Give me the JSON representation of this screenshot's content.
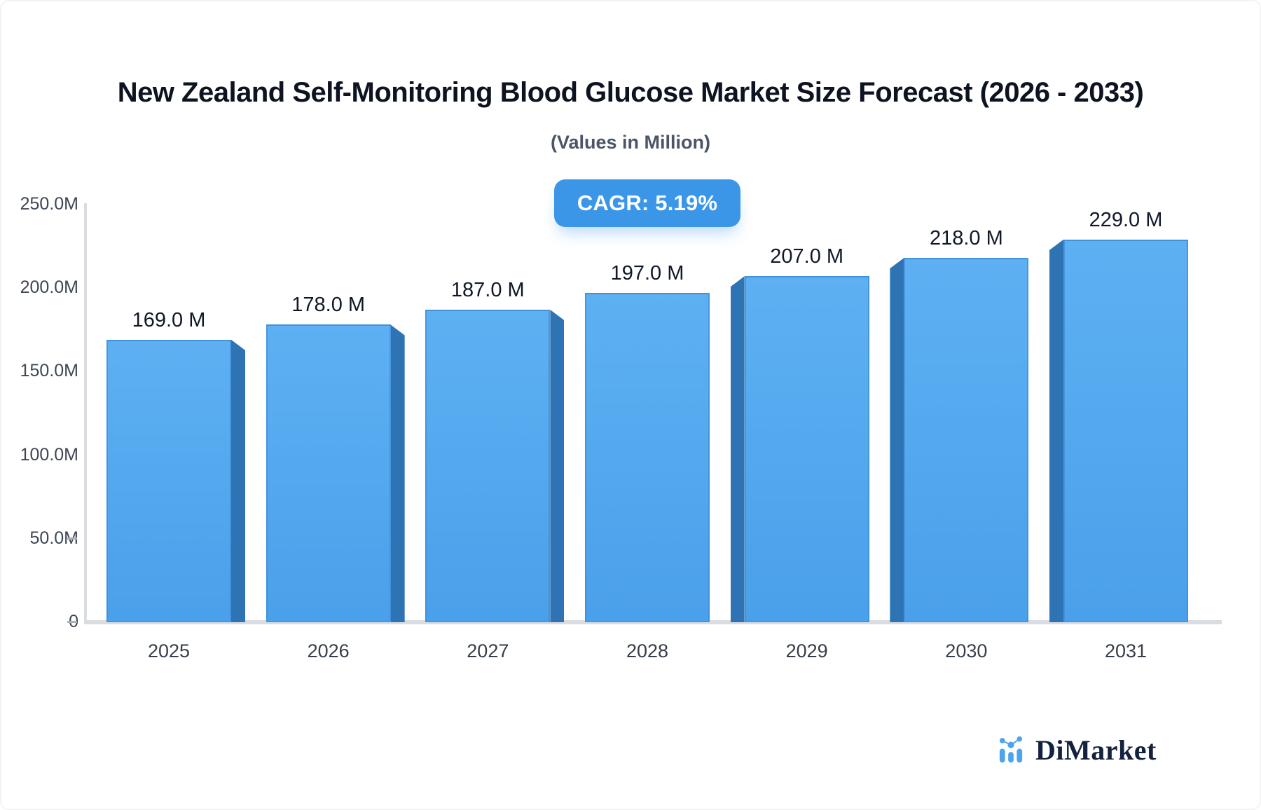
{
  "header": {
    "title": "New Zealand Self-Monitoring Blood Glucose Market Size Forecast (2026 - 2033)",
    "subtitle": "(Values in Million)"
  },
  "badge": {
    "label": "CAGR: 5.19%"
  },
  "chart_data": {
    "type": "bar",
    "title": "New Zealand Self-Monitoring Blood Glucose Market Size Forecast (2026 - 2033)",
    "subtitle": "(Values in Million)",
    "categories": [
      "2025",
      "2026",
      "2027",
      "2028",
      "2029",
      "2030",
      "2031"
    ],
    "values": [
      169,
      178,
      187,
      197,
      207,
      218,
      229
    ],
    "value_labels": [
      "169.0 M",
      "178.0 M",
      "187.0 M",
      "197.0 M",
      "207.0 M",
      "218.0 M",
      "229.0 M"
    ],
    "unit": "Million",
    "xlabel": "",
    "ylabel": "",
    "ylim": [
      0,
      250
    ],
    "y_ticks": [
      {
        "value": 250,
        "label": "250.0M",
        "tick": false
      },
      {
        "value": 200,
        "label": "200.0M",
        "tick": false
      },
      {
        "value": 150,
        "label": "150.0M",
        "tick": false
      },
      {
        "value": 100,
        "label": "100.0M",
        "tick": false
      },
      {
        "value": 50,
        "label": "50.0M",
        "tick": true
      },
      {
        "value": 0,
        "label": "0",
        "tick": true
      }
    ],
    "grid": false,
    "legend": false,
    "cagr": "5.19%",
    "style": "3d-extruded-bars"
  },
  "colors": {
    "bar_front": "#55a8ef",
    "bar_side": "#2e74b4",
    "badge_blue": "#3b96e8",
    "axis_gray": "#d9dce1",
    "title_text": "#0d1320",
    "subtitle_text": "#4a5565",
    "brand_navy": "#15223d",
    "brand_blue": "#4da3ee"
  },
  "branding": {
    "name": "DiMarket",
    "icon": "bar-chart-logo-icon"
  }
}
